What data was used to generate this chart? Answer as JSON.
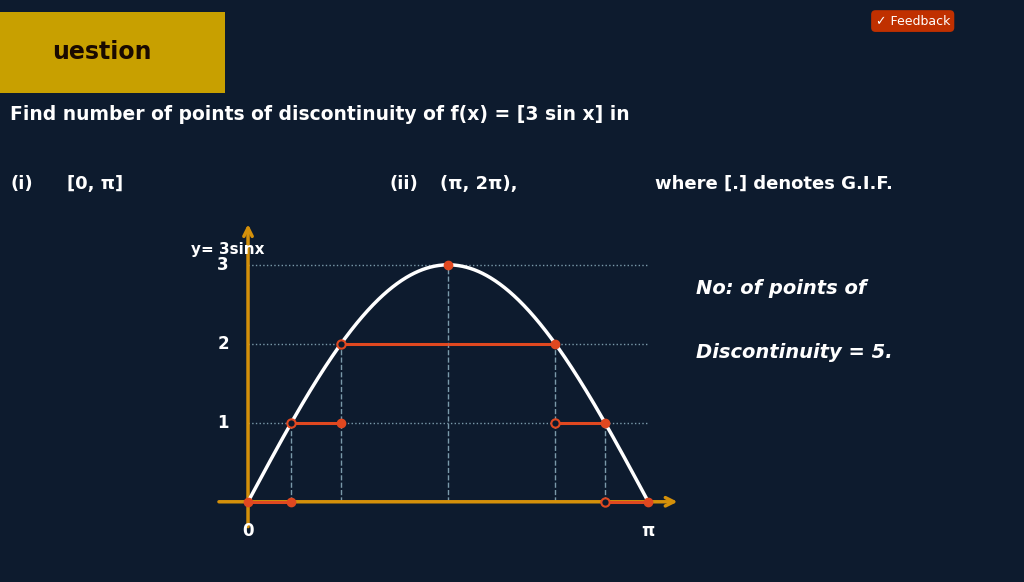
{
  "bg_color": "#0d1b2e",
  "tab_color": "#c8a000",
  "tab_text": "uestion",
  "tab_text_color": "#1a0a00",
  "feedback_color": "#c03000",
  "feedback_text": "✓ Feedback",
  "header_text": "Find number of points of discontinuity of f(x) = [3 sin x] in",
  "sub_i": "(i)",
  "sub_i_val": "[0, π]",
  "sub_ii": "(ii)",
  "sub_ii_val": "(π, 2π),",
  "sub_where": "where [.] denotes G.I.F.",
  "label_y": "y= 3sinx",
  "label_answer_line1": "No: of points of",
  "label_answer_line2": "Discontinuity = 5.",
  "axis_color": "#d4900a",
  "curve_color": "#ffffff",
  "step_color": "#e04820",
  "grid_dot_color": "#7a9aaa",
  "pi": 3.14159265358979
}
